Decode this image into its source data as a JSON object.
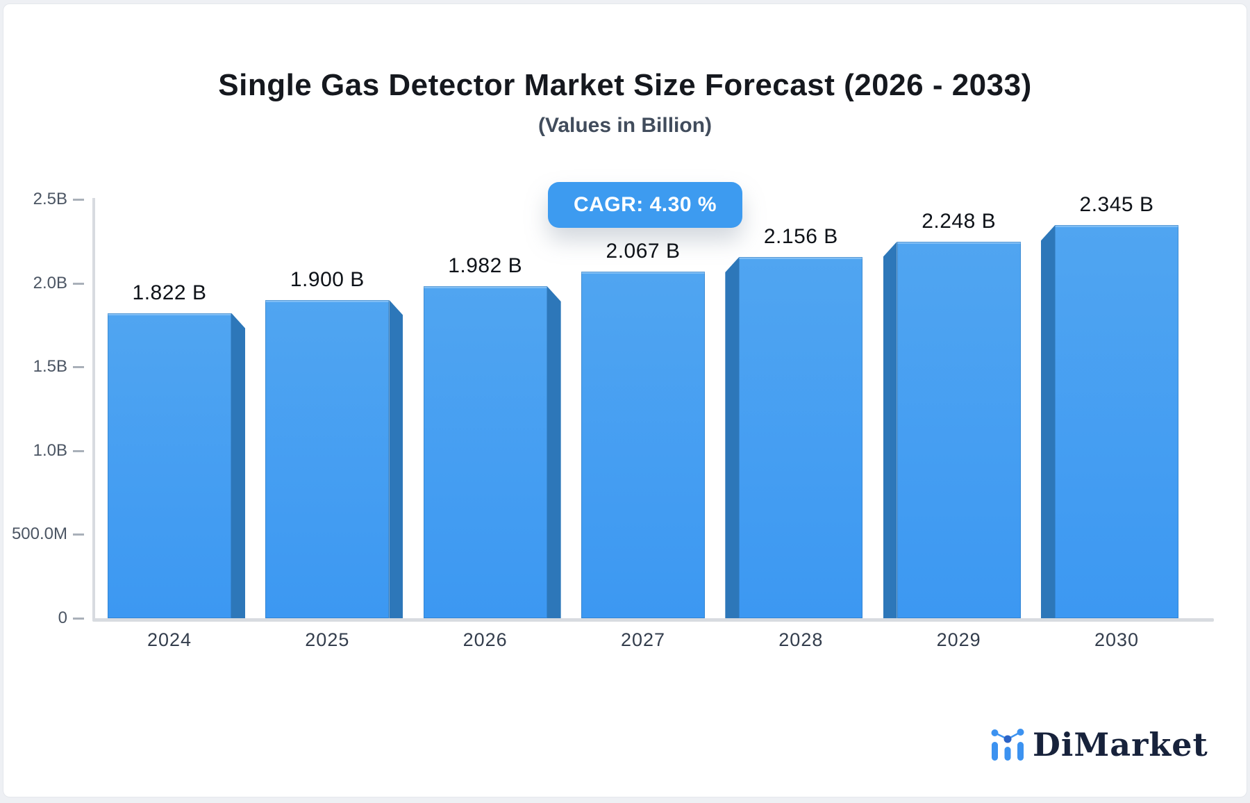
{
  "page": {
    "background": "#eef0f4",
    "card_background": "#ffffff"
  },
  "header": {
    "title": "Single Gas Detector Market Size Forecast (2026 - 2033)",
    "subtitle": "(Values in Billion)"
  },
  "badge": {
    "label": "CAGR: 4.30 %",
    "color": "#3d9bf0"
  },
  "chart_data": {
    "type": "bar",
    "title": "Single Gas Detector Market Size Forecast (2026 - 2033)",
    "subtitle": "(Values in Billion)",
    "categories": [
      "2024",
      "2025",
      "2026",
      "2027",
      "2028",
      "2029",
      "2030"
    ],
    "values": [
      1.822,
      1.9,
      1.982,
      2.067,
      2.156,
      2.248,
      2.345
    ],
    "value_labels": [
      "1.822 B",
      "1.900 B",
      "1.982 B",
      "2.067 B",
      "2.156 B",
      "2.248 B",
      "2.345 B"
    ],
    "unit": "B",
    "ylim": [
      0,
      2.5
    ],
    "ytick_labels": [
      "2.5B",
      "2.0B",
      "1.5B",
      "1.0B",
      "500.0M",
      "0"
    ],
    "xlabel": "",
    "ylabel": "",
    "grid": false,
    "legend": false,
    "style": "3d-beveled-bars",
    "bar_color_top": "#50a5f1",
    "bar_color_bottom": "#3c98f2",
    "bar_side_color": "#2d77b9",
    "axis_color": "#d8dbe0",
    "tick_color": "#a9b0b9"
  },
  "footer": {
    "brand": "DiMarket",
    "logo_icon": "bar-line-chart-icon",
    "brand_color": "#17223b",
    "logo_blue": "#3c92f0",
    "logo_dark_dot": "#2b63c6"
  }
}
